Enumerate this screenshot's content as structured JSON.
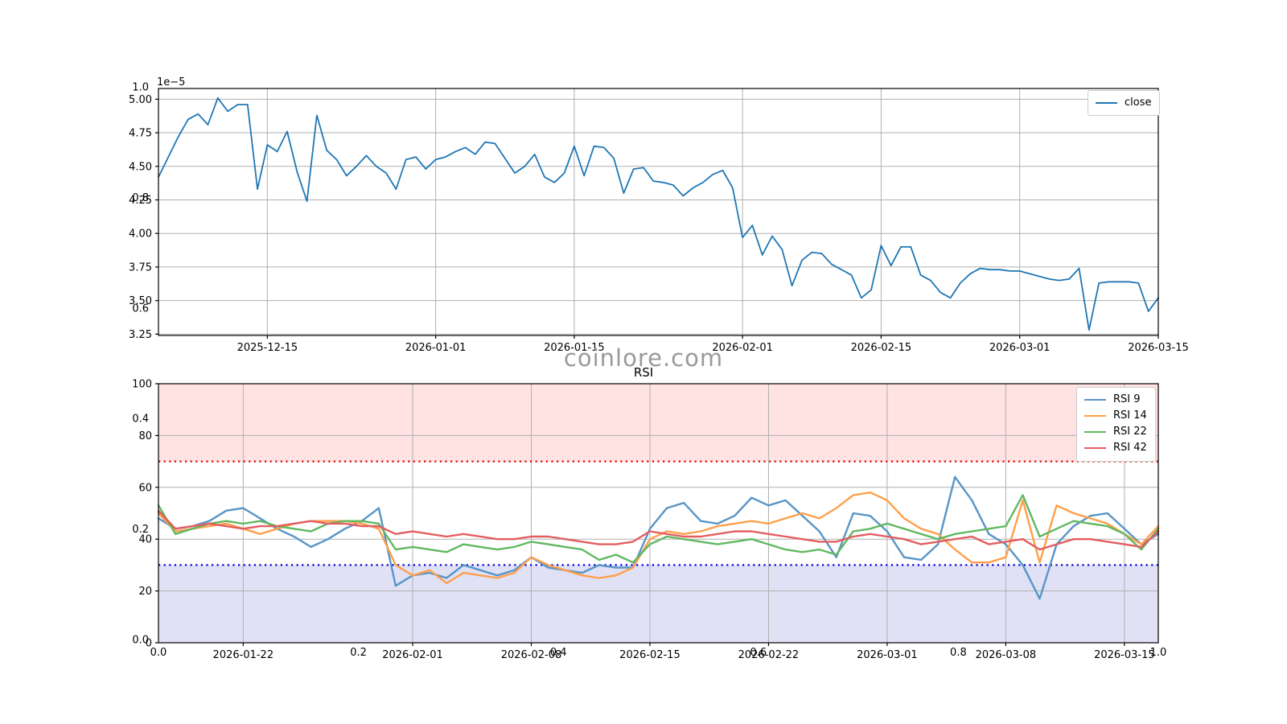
{
  "watermark": "coinlore.com",
  "rsi_title": "RSI",
  "colors": {
    "close": "#1F77B4",
    "rsi9": "#5795C7",
    "rsi14": "#FF9F4A",
    "rsi22": "#61B861",
    "rsi42": "#E45D5E",
    "overbought_band": "#FFE2E2",
    "oversold_band": "#E1E1F6",
    "overbought_line": "#DD0000",
    "oversold_line": "#0000DD",
    "grid": "#B0B0B0",
    "spine": "#000000",
    "watermark_color": "#9A9A9A"
  },
  "phantom_axis": {
    "x_labels": [
      "0.0",
      "0.2",
      "0.4",
      "0.6",
      "0.8",
      "1.0"
    ],
    "y_labels": [
      "0.0",
      "0.2",
      "0.4",
      "0.6",
      "0.8",
      "1.0"
    ]
  },
  "chart_data": [
    {
      "id": "price",
      "type": "line",
      "y_offset_label": "1e−5",
      "x_start_date": "2025-12-04",
      "frequency": "daily",
      "ylim": [
        3.24,
        5.08
      ],
      "grid": true,
      "legend_position": "upper right",
      "yticks": [
        {
          "label": "5.00",
          "value": 5.0
        },
        {
          "label": "4.75",
          "value": 4.75
        },
        {
          "label": "4.50",
          "value": 4.5
        },
        {
          "label": "4.25",
          "value": 4.25
        },
        {
          "label": "4.00",
          "value": 4.0
        },
        {
          "label": "3.75",
          "value": 3.75
        },
        {
          "label": "3.50",
          "value": 3.5
        },
        {
          "label": "3.25",
          "value": 3.25
        }
      ],
      "xticks": [
        {
          "label": "2025-12-15",
          "day": 11
        },
        {
          "label": "2026-01-01",
          "day": 28
        },
        {
          "label": "2026-01-15",
          "day": 42
        },
        {
          "label": "2026-02-01",
          "day": 59
        },
        {
          "label": "2026-02-15",
          "day": 73
        },
        {
          "label": "2026-03-01",
          "day": 87
        },
        {
          "label": "2026-03-15",
          "day": 101
        }
      ],
      "legend": [
        {
          "label": "close",
          "color_key": "close"
        }
      ],
      "series": [
        {
          "name": "close",
          "color_key": "close",
          "width": 1.8,
          "values": [
            4.42,
            4.57,
            4.72,
            4.85,
            4.89,
            4.81,
            5.01,
            4.91,
            4.96,
            4.96,
            4.33,
            4.66,
            4.61,
            4.76,
            4.46,
            4.24,
            4.88,
            4.62,
            4.55,
            4.43,
            4.5,
            4.58,
            4.5,
            4.45,
            4.33,
            4.55,
            4.57,
            4.48,
            4.55,
            4.57,
            4.61,
            4.64,
            4.59,
            4.68,
            4.67,
            4.56,
            4.45,
            4.5,
            4.59,
            4.42,
            4.38,
            4.45,
            4.65,
            4.43,
            4.65,
            4.64,
            4.56,
            4.3,
            4.48,
            4.49,
            4.39,
            4.38,
            4.36,
            4.28,
            4.34,
            4.38,
            4.44,
            4.47,
            4.34,
            3.97,
            4.06,
            3.84,
            3.98,
            3.88,
            3.61,
            3.8,
            3.86,
            3.85,
            3.77,
            3.73,
            3.69,
            3.52,
            3.58,
            3.91,
            3.76,
            3.9,
            3.9,
            3.69,
            3.65,
            3.56,
            3.52,
            3.63,
            3.7,
            3.74,
            3.73,
            3.73,
            3.72,
            3.72,
            3.7,
            3.68,
            3.66,
            3.65,
            3.66,
            3.74,
            3.28,
            3.63,
            3.64,
            3.64,
            3.64,
            3.63,
            3.42,
            3.52
          ]
        }
      ]
    },
    {
      "id": "rsi",
      "type": "line",
      "title": "RSI",
      "x_start_date": "2026-01-17",
      "frequency": "daily",
      "ylim": [
        0,
        100
      ],
      "grid": true,
      "legend_position": "upper right",
      "bands": [
        {
          "name": "overbought",
          "from": 70,
          "to": 100,
          "color_key": "overbought_band"
        },
        {
          "name": "oversold",
          "from": 0,
          "to": 30,
          "color_key": "oversold_band"
        }
      ],
      "hlines": [
        {
          "name": "overbought-threshold",
          "value": 70,
          "color_key": "overbought_line",
          "style": "dotted"
        },
        {
          "name": "oversold-threshold",
          "value": 30,
          "color_key": "oversold_line",
          "style": "dotted"
        }
      ],
      "yticks": [
        {
          "label": "100",
          "value": 100
        },
        {
          "label": "80",
          "value": 80
        },
        {
          "label": "60",
          "value": 60
        },
        {
          "label": "40",
          "value": 40
        },
        {
          "label": "20",
          "value": 20
        },
        {
          "label": "0",
          "value": 0
        }
      ],
      "xticks": [
        {
          "label": "2026-01-22",
          "day": 5
        },
        {
          "label": "2026-02-01",
          "day": 15
        },
        {
          "label": "2026-02-08",
          "day": 22
        },
        {
          "label": "2026-02-15",
          "day": 29
        },
        {
          "label": "2026-02-22",
          "day": 36
        },
        {
          "label": "2026-03-01",
          "day": 43
        },
        {
          "label": "2026-03-08",
          "day": 50
        },
        {
          "label": "2026-03-15",
          "day": 57
        }
      ],
      "legend": [
        {
          "label": "RSI 9",
          "color_key": "rsi9"
        },
        {
          "label": "RSI 14",
          "color_key": "rsi14"
        },
        {
          "label": "RSI 22",
          "color_key": "rsi22"
        },
        {
          "label": "RSI 42",
          "color_key": "rsi42"
        }
      ],
      "series": [
        {
          "name": "RSI 9",
          "color_key": "rsi9",
          "width": 2.4,
          "values": [
            48,
            44,
            45,
            47,
            51,
            52,
            48,
            44,
            41,
            37,
            40,
            44,
            47,
            52,
            22,
            26,
            27,
            25,
            30,
            28,
            26,
            28,
            33,
            29,
            28,
            27,
            30,
            29,
            29,
            44,
            52,
            54,
            47,
            46,
            49,
            56,
            53,
            55,
            49,
            43,
            33,
            50,
            49,
            43,
            33,
            32,
            38,
            64,
            55,
            42,
            38,
            30,
            17,
            38,
            45,
            49,
            50,
            44,
            38,
            42
          ]
        },
        {
          "name": "RSI 14",
          "color_key": "rsi14",
          "width": 2.4,
          "values": [
            50,
            43,
            44,
            45,
            46,
            44,
            42,
            44,
            46,
            47,
            47,
            47,
            46,
            44,
            30,
            26,
            28,
            23,
            27,
            26,
            25,
            27,
            33,
            30,
            28,
            26,
            25,
            26,
            29,
            40,
            43,
            42,
            43,
            45,
            46,
            47,
            46,
            48,
            50,
            48,
            52,
            57,
            58,
            55,
            48,
            44,
            42,
            36,
            31,
            31,
            33,
            55,
            31,
            53,
            50,
            48,
            46,
            42,
            38,
            45
          ]
        },
        {
          "name": "RSI 22",
          "color_key": "rsi22",
          "width": 2.4,
          "values": [
            53,
            42,
            44,
            46,
            47,
            46,
            47,
            45,
            44,
            43,
            46,
            47,
            47,
            46,
            36,
            37,
            36,
            35,
            38,
            37,
            36,
            37,
            39,
            38,
            37,
            36,
            32,
            34,
            31,
            38,
            41,
            40,
            39,
            38,
            39,
            40,
            38,
            36,
            35,
            36,
            34,
            43,
            44,
            46,
            44,
            42,
            40,
            42,
            43,
            44,
            45,
            57,
            41,
            44,
            47,
            46,
            45,
            42,
            36,
            44
          ]
        },
        {
          "name": "RSI 42",
          "color_key": "rsi42",
          "width": 2.4,
          "values": [
            51,
            44,
            45,
            46,
            45,
            44,
            45,
            45,
            46,
            47,
            46,
            46,
            45,
            45,
            42,
            43,
            42,
            41,
            42,
            41,
            40,
            40,
            41,
            41,
            40,
            39,
            38,
            38,
            39,
            43,
            42,
            41,
            41,
            42,
            43,
            43,
            42,
            41,
            40,
            39,
            39,
            41,
            42,
            41,
            40,
            38,
            39,
            40,
            41,
            38,
            39,
            40,
            36,
            38,
            40,
            40,
            39,
            38,
            37,
            43
          ]
        }
      ]
    }
  ]
}
